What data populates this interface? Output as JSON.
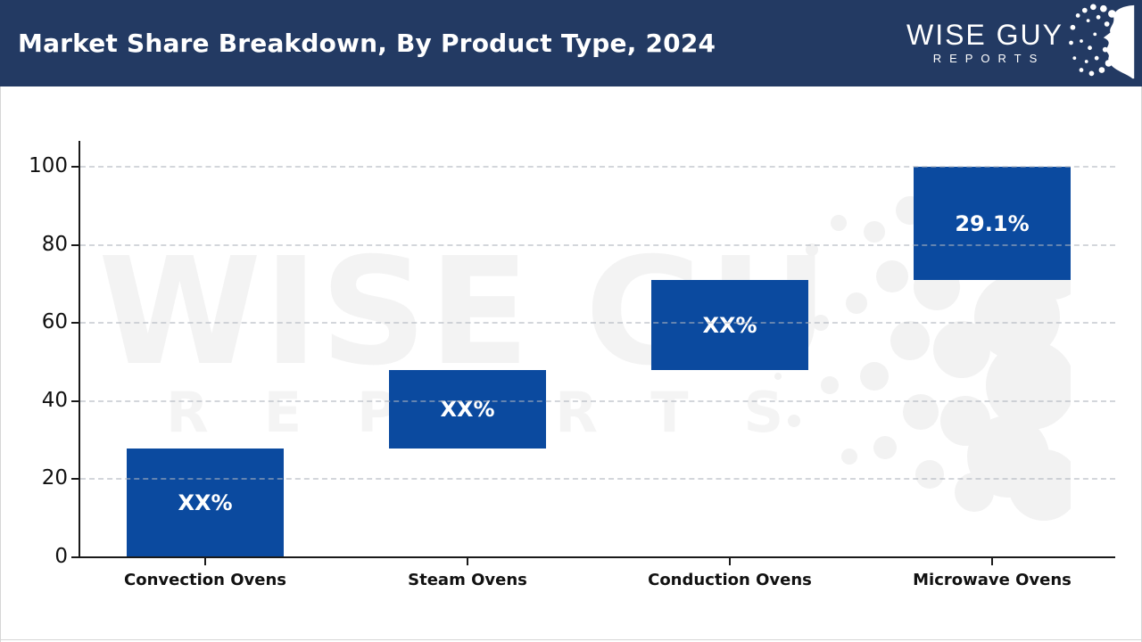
{
  "header": {
    "title": "Market Share Breakdown, By Product Type, 2024",
    "bg_color": "#233a63",
    "logo": {
      "line1": "WISE GUY",
      "line2": "REPORTS"
    }
  },
  "watermark": {
    "line1": "WISE GU",
    "line2": "REPORTS"
  },
  "chart_data": {
    "type": "bar",
    "subtype": "floating-segment-breakdown",
    "title": "Market Share Breakdown, By Product Type, 2024",
    "categories": [
      "Convection Ovens",
      "Steam Ovens",
      "Conduction Ovens",
      "Microwave Ovens"
    ],
    "series": [
      {
        "name": "Convection Ovens",
        "from": 0,
        "to": 27.8,
        "value": 27.8,
        "label": "XX%"
      },
      {
        "name": "Steam Ovens",
        "from": 27.8,
        "to": 47.9,
        "value": 20.1,
        "label": "XX%"
      },
      {
        "name": "Conduction Ovens",
        "from": 47.9,
        "to": 70.9,
        "value": 23.0,
        "label": "XX%"
      },
      {
        "name": "Microwave Ovens",
        "from": 70.9,
        "to": 100,
        "value": 29.1,
        "label": "29.1%"
      }
    ],
    "xlabel": "",
    "ylabel": "",
    "ylim": [
      0,
      106
    ],
    "yticks": [
      0,
      20,
      40,
      60,
      80,
      100
    ],
    "grid": "horizontal-dashed",
    "legend": "none",
    "bar_color": "#0b4a9f",
    "bar_label_color": "#ffffff"
  }
}
